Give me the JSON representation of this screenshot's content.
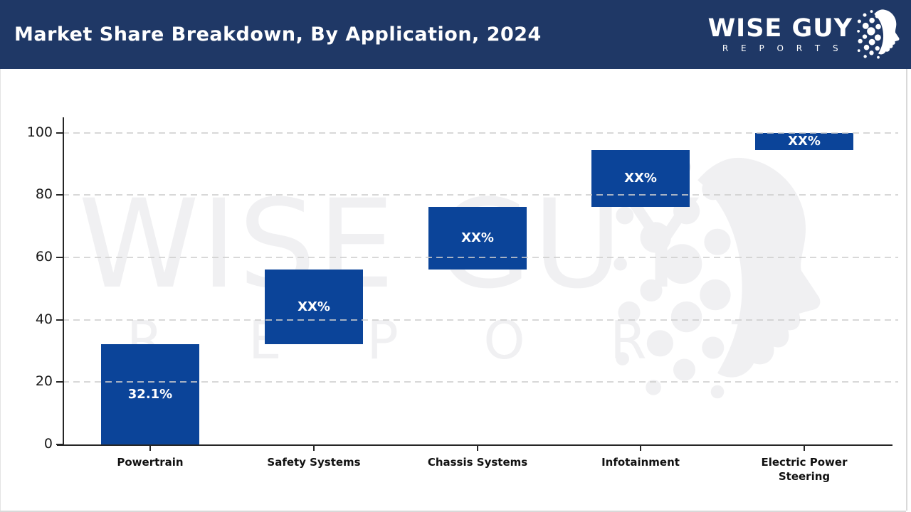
{
  "header": {
    "title": "Market Share Breakdown, By Application, 2024",
    "logo": {
      "line1": "WISE GUY",
      "line2": "R E P O R T S"
    }
  },
  "watermark": {
    "line1": "WISE GUY",
    "line2": "R E P O R T S"
  },
  "colors": {
    "header_bg": "#1f3866",
    "bar_blue": "#0b4499",
    "gridline": "#d0d0d0",
    "axis": "#262626",
    "watermark": "#f0f0f2",
    "figure_border": "#d9d9d9"
  },
  "chart_data": {
    "type": "bar",
    "subtype": "waterfall",
    "title": "Market Share Breakdown, By Application, 2024",
    "xlabel": "",
    "ylabel": "",
    "categories": [
      "Powertrain",
      "Safety Systems",
      "Chassis Systems",
      "Infotainment",
      "Electric Power Steering"
    ],
    "segments": [
      {
        "category": "Powertrain",
        "start": 0,
        "end": 32.1,
        "value_label": "32.1%"
      },
      {
        "category": "Safety Systems",
        "start": 32.1,
        "end": 56.1,
        "value_label": "XX%"
      },
      {
        "category": "Chassis Systems",
        "start": 56.1,
        "end": 76.2,
        "value_label": "XX%"
      },
      {
        "category": "Infotainment",
        "start": 76.2,
        "end": 94.4,
        "value_label": "XX%"
      },
      {
        "category": "Electric Power Steering",
        "start": 94.4,
        "end": 100,
        "value_label": "XX%"
      }
    ],
    "y_ticks": [
      0,
      20,
      40,
      60,
      80,
      100
    ],
    "ylim": [
      0,
      105
    ],
    "grid": "horizontal-dashed",
    "legend": "none",
    "bar_color": "#0b4499"
  }
}
